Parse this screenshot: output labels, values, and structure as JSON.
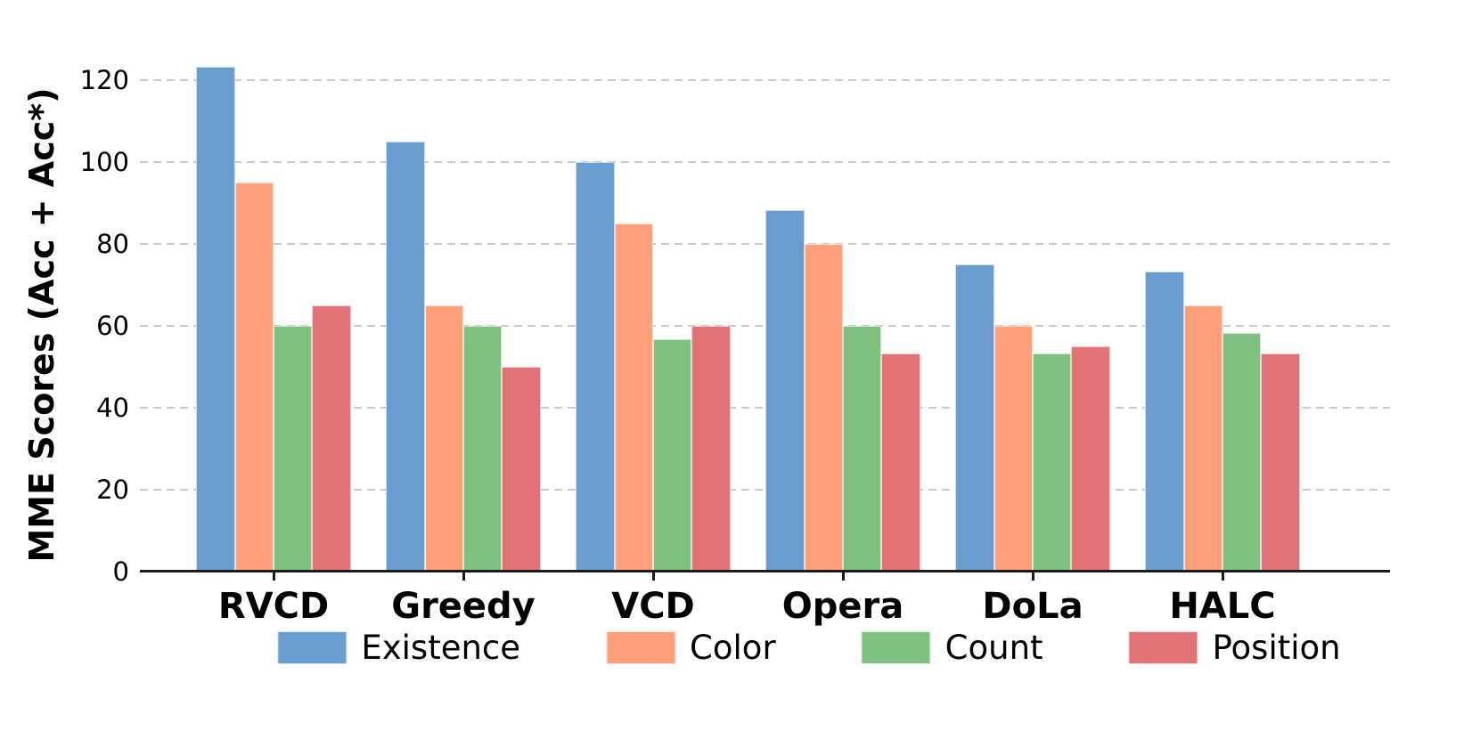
{
  "chart_data": {
    "type": "bar",
    "title": "",
    "xlabel": "",
    "ylabel": "MME Scores (Acc + Acc*)",
    "categories": [
      "RVCD",
      "Greedy",
      "VCD",
      "Opera",
      "DoLa",
      "HALC"
    ],
    "series": [
      {
        "name": "Existence",
        "color": "#6A9CCE",
        "values": [
          123.3,
          105.0,
          100.0,
          88.3,
          75.0,
          73.3
        ]
      },
      {
        "name": "Color",
        "color": "#FFA07A",
        "values": [
          95.0,
          65.0,
          85.0,
          80.0,
          60.0,
          65.0
        ]
      },
      {
        "name": "Count",
        "color": "#7EC07E",
        "values": [
          60.0,
          60.0,
          56.7,
          60.0,
          53.3,
          58.3
        ]
      },
      {
        "name": "Position",
        "color": "#E17376",
        "values": [
          65.0,
          50.0,
          60.0,
          53.3,
          55.0,
          53.3
        ]
      }
    ],
    "yticks": [
      0,
      20,
      40,
      60,
      80,
      100,
      120
    ],
    "ylim": [
      0,
      130
    ],
    "grid": "horizontal-dashed",
    "gridline_color": "#cbcbcb",
    "axis_color": "#1a1a1a",
    "legend_position": "bottom"
  }
}
